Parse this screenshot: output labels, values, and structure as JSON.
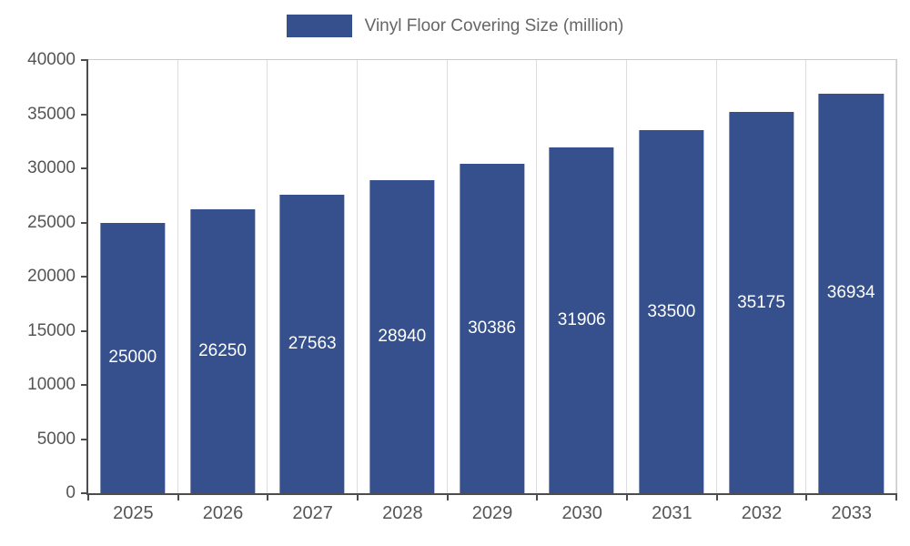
{
  "legend": {
    "label": "Vinyl Floor Covering Size (million)",
    "swatch_color": "#35508C"
  },
  "chart_data": {
    "type": "bar",
    "title": "Vinyl Floor Covering Size (million)",
    "series_name": "Vinyl Floor Covering Size (million)",
    "categories": [
      "2025",
      "2026",
      "2027",
      "2028",
      "2029",
      "2030",
      "2031",
      "2032",
      "2033"
    ],
    "values": [
      25000,
      26250,
      27563,
      28940,
      30386,
      31906,
      33500,
      35175,
      36934
    ],
    "xlabel": "",
    "ylabel": "",
    "ylim": [
      0,
      40000
    ],
    "y_tick_step": 5000,
    "y_tick_labels": [
      "0",
      "5000",
      "10000",
      "15000",
      "20000",
      "25000",
      "30000",
      "35000",
      "40000"
    ],
    "grid": "vertical-category-separators",
    "legend_position": "top-center",
    "bar_color": "#35508C",
    "value_label_color": "#ffffff",
    "value_label_position": "inside-center"
  }
}
